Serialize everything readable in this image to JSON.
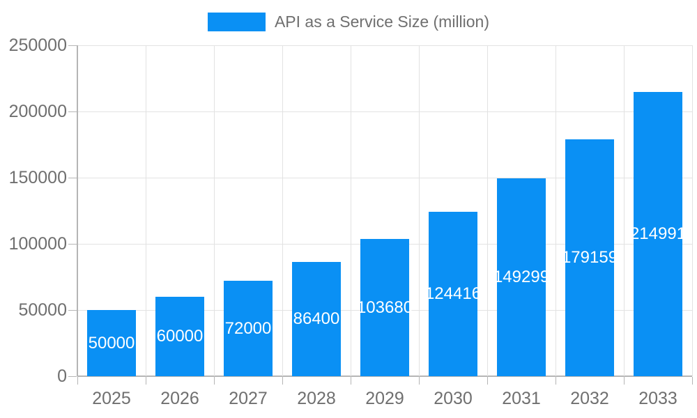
{
  "legend": {
    "label": "API as a Service Size (million)"
  },
  "chart_data": {
    "type": "bar",
    "title": "API as a Service Size (million)",
    "series_name": "API as a Service Size (million)",
    "categories": [
      "2025",
      "2026",
      "2027",
      "2028",
      "2029",
      "2030",
      "2031",
      "2032",
      "2033"
    ],
    "values": [
      50000,
      60000,
      72000,
      86400,
      103680,
      124416,
      149299,
      179159,
      214991
    ],
    "data_labels": [
      "50000",
      "60000",
      "72000",
      "86400",
      "103680",
      "124416",
      "149299",
      "179159",
      "214991"
    ],
    "xlabel": "",
    "ylabel": "",
    "ylim": [
      0,
      250000
    ],
    "y_ticks": [
      0,
      50000,
      100000,
      150000,
      200000,
      250000
    ],
    "grid": true,
    "legend_position": "top",
    "colors": {
      "bar": "#0a90f4",
      "data_label_text": "#ffffff",
      "axis_text": "#6f6f6f",
      "gridline": "#e2e2e2",
      "axis_line": "#b5b5b5"
    }
  }
}
